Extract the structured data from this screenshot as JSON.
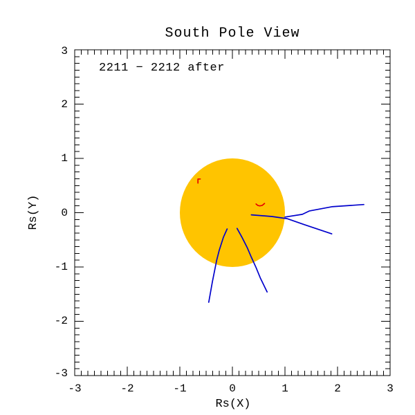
{
  "chart_data": {
    "type": "line",
    "title": "South Pole View",
    "annotation": "2211 − 2212 after",
    "xlabel": "Rs(X)",
    "ylabel": "Rs(Y)",
    "xlim": [
      -3,
      3
    ],
    "ylim": [
      -3,
      3
    ],
    "x_tick_labels": [
      "-3",
      "-2",
      "-1",
      "0",
      "1",
      "2",
      "3"
    ],
    "y_tick_labels": [
      "3",
      "2",
      "1",
      "0",
      "-1",
      "-2",
      "-3"
    ],
    "minor_divisions": 8,
    "grid": false,
    "legend": false,
    "background_color": "#FFFFFF",
    "axis_color": "#000000",
    "text_color": "#000000",
    "sun": {
      "name": "solar-disk",
      "center": [
        0,
        0
      ],
      "radius": 1.0,
      "color": "#FFC400"
    },
    "series": [
      {
        "name": "field-line-right-lower",
        "color": "#0000CC",
        "points": [
          [
            0.36,
            -0.04
          ],
          [
            0.75,
            -0.07
          ],
          [
            1.04,
            -0.11
          ],
          [
            1.37,
            -0.22
          ],
          [
            1.89,
            -0.39
          ]
        ]
      },
      {
        "name": "field-line-right-upper",
        "color": "#0000CC",
        "points": [
          [
            1.0,
            -0.08
          ],
          [
            1.33,
            -0.03
          ],
          [
            1.46,
            0.03
          ],
          [
            1.89,
            0.11
          ],
          [
            2.5,
            0.15
          ]
        ]
      },
      {
        "name": "field-line-bottom-left",
        "color": "#0000CC",
        "points": [
          [
            -0.1,
            -0.3
          ],
          [
            -0.17,
            -0.45
          ],
          [
            -0.25,
            -0.69
          ],
          [
            -0.3,
            -0.88
          ],
          [
            -0.38,
            -1.27
          ],
          [
            -0.45,
            -1.65
          ]
        ]
      },
      {
        "name": "field-line-bottom-right",
        "color": "#0000CC",
        "points": [
          [
            0.09,
            -0.29
          ],
          [
            0.18,
            -0.45
          ],
          [
            0.28,
            -0.64
          ],
          [
            0.36,
            -0.82
          ],
          [
            0.45,
            -1.01
          ],
          [
            0.53,
            -1.2
          ],
          [
            0.66,
            -1.46
          ]
        ]
      },
      {
        "name": "red-arc-mark",
        "color": "#E60000",
        "points": [
          [
            0.45,
            0.16
          ],
          [
            0.48,
            0.135
          ],
          [
            0.52,
            0.125
          ],
          [
            0.57,
            0.135
          ],
          [
            0.61,
            0.17
          ]
        ]
      },
      {
        "name": "red-corner-mark",
        "color": "#E60000",
        "points": [
          [
            -0.61,
            0.62
          ],
          [
            -0.655,
            0.62
          ],
          [
            -0.655,
            0.545
          ]
        ]
      }
    ]
  }
}
